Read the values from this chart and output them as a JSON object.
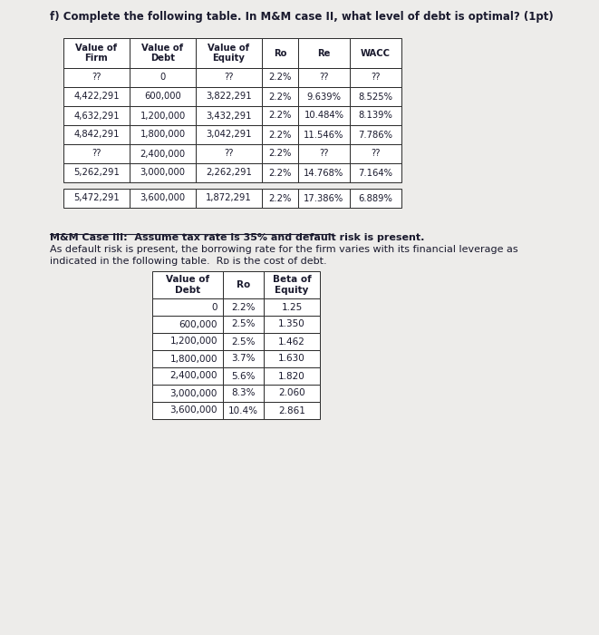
{
  "title": "f) Complete the following table. In M&M case II, what level of debt is optimal? (1pt)",
  "bg_color": "#edecea",
  "table1_headers": [
    "Value of\nFirm",
    "Value of\nDebt",
    "Value of\nEquity",
    "Ro",
    "Re",
    "WACC"
  ],
  "table1_rows": [
    [
      "??",
      "0",
      "??",
      "2.2%",
      "??",
      "??"
    ],
    [
      "4,422,291",
      "600,000",
      "3,822,291",
      "2.2%",
      "9.639%",
      "8.525%"
    ],
    [
      "4,632,291",
      "1,200,000",
      "3,432,291",
      "2.2%",
      "10.484%",
      "8.139%"
    ],
    [
      "4,842,291",
      "1,800,000",
      "3,042,291",
      "2.2%",
      "11.546%",
      "7.786%"
    ],
    [
      "??",
      "2,400,000",
      "??",
      "2.2%",
      "??",
      "??"
    ],
    [
      "5,262,291",
      "3,000,000",
      "2,262,291",
      "2.2%",
      "14.768%",
      "7.164%"
    ]
  ],
  "extra_row": [
    "5,472,291",
    "3,600,000",
    "1,872,291",
    "2.2%",
    "17.386%",
    "6.889%"
  ],
  "mm3_title": "M&M Case III:  Assume tax rate is 35% and default risk is present.",
  "mm3_body_line1": "As default risk is present, the borrowing rate for the firm varies with its financial leverage as",
  "mm3_body_line2": "indicated in the following table.  Rᴅ is the cost of debt.",
  "table2_headers": [
    "Value of\nDebt",
    "Ro",
    "Beta of\nEquity"
  ],
  "table2_rows": [
    [
      "0",
      "2.2%",
      "1.25"
    ],
    [
      "600,000",
      "2.5%",
      "1.350"
    ],
    [
      "1,200,000",
      "2.5%",
      "1.462"
    ],
    [
      "1,800,000",
      "3.7%",
      "1.630"
    ],
    [
      "2,400,000",
      "5.6%",
      "1.820"
    ],
    [
      "3,000,000",
      "8.3%",
      "2.060"
    ],
    [
      "3,600,000",
      "10.4%",
      "2.861"
    ]
  ]
}
